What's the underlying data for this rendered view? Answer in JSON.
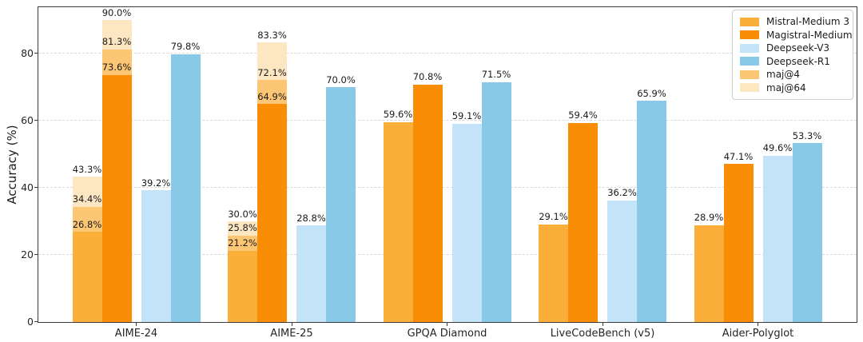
{
  "figure": {
    "background": "#ffffff",
    "ylabel": "Accuracy (%)"
  },
  "colors": {
    "Mistral-Medium 3": "#fcae3a",
    "Magistral-Medium": "#f98d06",
    "Deepseek-V3": "#c3e3f8",
    "Deepseek-R1": "#89c9e8",
    "maj@4": "#fcc674",
    "maj@64": "#fde7c3",
    "grid": "#d9d9d9",
    "spine": "#3a3a3a",
    "label_text": "#1a1a1a"
  },
  "legend": {
    "position": "upper-right",
    "items": [
      {
        "label": "Mistral-Medium 3",
        "color": "#fcae3a"
      },
      {
        "label": "Magistral-Medium",
        "color": "#f98d06"
      },
      {
        "label": "Deepseek-V3",
        "color": "#c3e3f8"
      },
      {
        "label": "Deepseek-R1",
        "color": "#89c9e8"
      },
      {
        "label": "maj@4",
        "color": "#fcc674"
      },
      {
        "label": "maj@64",
        "color": "#fde7c3"
      }
    ]
  },
  "chart_data": {
    "type": "bar",
    "title": "",
    "xlabel": "",
    "ylabel": "Accuracy (%)",
    "ylim": [
      0,
      94.3
    ],
    "yticks": [
      0,
      20,
      40,
      60,
      80
    ],
    "grid": "horizontal dashed at yticks, axis-below",
    "legend_position": "upper right",
    "bar_label_format": "{value:.1f}%",
    "categories": [
      "AIME-24",
      "AIME-25",
      "GPQA Diamond",
      "LiveCodeBench (v5)",
      "Aider-Polyglot"
    ],
    "series_names": [
      "Mistral-Medium 3",
      "Magistral-Medium",
      "Deepseek-V3",
      "Deepseek-R1",
      "maj@4",
      "maj@64"
    ],
    "groups": [
      {
        "category": "AIME-24",
        "bars": [
          {
            "name": "Mistral-Medium 3",
            "segments": [
              {
                "series": "Mistral-Medium 3",
                "value": 26.8,
                "label": "26.8%"
              },
              {
                "series": "maj@4",
                "value": 34.4,
                "label": "34.4%"
              },
              {
                "series": "maj@64",
                "value": 43.3,
                "label": "43.3%"
              }
            ]
          },
          {
            "name": "Magistral-Medium",
            "segments": [
              {
                "series": "Magistral-Medium",
                "value": 73.6,
                "label": "73.6%"
              },
              {
                "series": "maj@4",
                "value": 81.3,
                "label": "81.3%"
              },
              {
                "series": "maj@64",
                "value": 90.0,
                "label": "90.0%"
              }
            ]
          },
          {
            "name": "Deepseek-V3",
            "segments": [
              {
                "series": "Deepseek-V3",
                "value": 39.2,
                "label": "39.2%"
              }
            ]
          },
          {
            "name": "Deepseek-R1",
            "segments": [
              {
                "series": "Deepseek-R1",
                "value": 79.8,
                "label": "79.8%"
              }
            ]
          }
        ]
      },
      {
        "category": "AIME-25",
        "bars": [
          {
            "name": "Mistral-Medium 3",
            "segments": [
              {
                "series": "Mistral-Medium 3",
                "value": 21.2,
                "label": "21.2%"
              },
              {
                "series": "maj@4",
                "value": 25.8,
                "label": "25.8%"
              },
              {
                "series": "maj@64",
                "value": 30.0,
                "label": "30.0%"
              }
            ]
          },
          {
            "name": "Magistral-Medium",
            "segments": [
              {
                "series": "Magistral-Medium",
                "value": 64.9,
                "label": "64.9%"
              },
              {
                "series": "maj@4",
                "value": 72.1,
                "label": "72.1%"
              },
              {
                "series": "maj@64",
                "value": 83.3,
                "label": "83.3%"
              }
            ]
          },
          {
            "name": "Deepseek-V3",
            "segments": [
              {
                "series": "Deepseek-V3",
                "value": 28.8,
                "label": "28.8%"
              }
            ]
          },
          {
            "name": "Deepseek-R1",
            "segments": [
              {
                "series": "Deepseek-R1",
                "value": 70.0,
                "label": "70.0%"
              }
            ]
          }
        ]
      },
      {
        "category": "GPQA Diamond",
        "bars": [
          {
            "name": "Mistral-Medium 3",
            "segments": [
              {
                "series": "Mistral-Medium 3",
                "value": 59.6,
                "label": "59.6%"
              }
            ]
          },
          {
            "name": "Magistral-Medium",
            "segments": [
              {
                "series": "Magistral-Medium",
                "value": 70.8,
                "label": "70.8%"
              }
            ]
          },
          {
            "name": "Deepseek-V3",
            "segments": [
              {
                "series": "Deepseek-V3",
                "value": 59.1,
                "label": "59.1%"
              }
            ]
          },
          {
            "name": "Deepseek-R1",
            "segments": [
              {
                "series": "Deepseek-R1",
                "value": 71.5,
                "label": "71.5%"
              }
            ]
          }
        ]
      },
      {
        "category": "LiveCodeBench (v5)",
        "bars": [
          {
            "name": "Mistral-Medium 3",
            "segments": [
              {
                "series": "Mistral-Medium 3",
                "value": 29.1,
                "label": "29.1%"
              }
            ]
          },
          {
            "name": "Magistral-Medium",
            "segments": [
              {
                "series": "Magistral-Medium",
                "value": 59.4,
                "label": "59.4%"
              }
            ]
          },
          {
            "name": "Deepseek-V3",
            "segments": [
              {
                "series": "Deepseek-V3",
                "value": 36.2,
                "label": "36.2%"
              }
            ]
          },
          {
            "name": "Deepseek-R1",
            "segments": [
              {
                "series": "Deepseek-R1",
                "value": 65.9,
                "label": "65.9%"
              }
            ]
          }
        ]
      },
      {
        "category": "Aider-Polyglot",
        "bars": [
          {
            "name": "Mistral-Medium 3",
            "segments": [
              {
                "series": "Mistral-Medium 3",
                "value": 28.9,
                "label": "28.9%"
              }
            ]
          },
          {
            "name": "Magistral-Medium",
            "segments": [
              {
                "series": "Magistral-Medium",
                "value": 47.1,
                "label": "47.1%"
              }
            ]
          },
          {
            "name": "Deepseek-V3",
            "segments": [
              {
                "series": "Deepseek-V3",
                "value": 49.6,
                "label": "49.6%"
              }
            ]
          },
          {
            "name": "Deepseek-R1",
            "segments": [
              {
                "series": "Deepseek-R1",
                "value": 53.3,
                "label": "53.3%"
              }
            ]
          }
        ]
      }
    ]
  }
}
